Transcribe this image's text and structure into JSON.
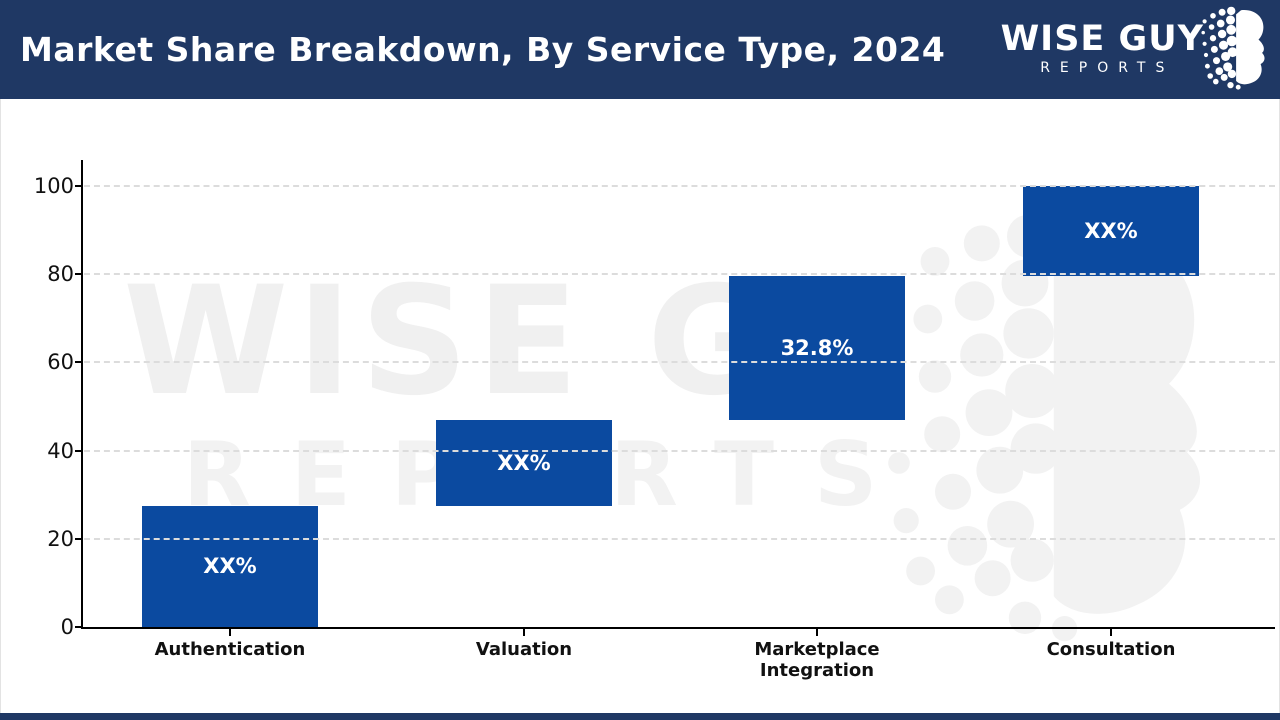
{
  "header": {
    "title": "Market Share Breakdown, By Service Type, 2024",
    "brand": {
      "wordmark": "WISE GUY",
      "subtext": "REPORTS"
    }
  },
  "watermark": {
    "wordmark": "WISE GU",
    "subtext": "REPORTS"
  },
  "colors": {
    "header_bg": "#1f3864",
    "footer_bg": "#1f3864",
    "bar": "#0b4aa0",
    "bar_label": "#ffffff",
    "gridline": "#dcdcdc",
    "axis": "#000000",
    "watermark": "#f0f0f0"
  },
  "chart_data": {
    "type": "bar",
    "subtype": "floating-waterfall",
    "title": "Market Share Breakdown, By Service Type, 2024",
    "categories": [
      "Authentication",
      "Valuation",
      "Marketplace Integration",
      "Consultation"
    ],
    "bars": [
      {
        "category": "Authentication",
        "start": 0,
        "end": 27.5,
        "label": "XX%"
      },
      {
        "category": "Valuation",
        "start": 27.5,
        "end": 46.9,
        "label": "XX%"
      },
      {
        "category": "Marketplace Integration",
        "start": 46.9,
        "end": 79.7,
        "label": "32.8%"
      },
      {
        "category": "Consultation",
        "start": 79.7,
        "end": 100,
        "label": "XX%"
      }
    ],
    "yticks": [
      0,
      20,
      40,
      60,
      80,
      100
    ],
    "ylim": [
      0,
      105
    ],
    "xlabel": "",
    "ylabel": "",
    "grid": "dashed-horizontal",
    "grid_above_bars": true,
    "legend": "none",
    "bar_color": "#0b4aa0",
    "label_color": "#ffffff"
  }
}
